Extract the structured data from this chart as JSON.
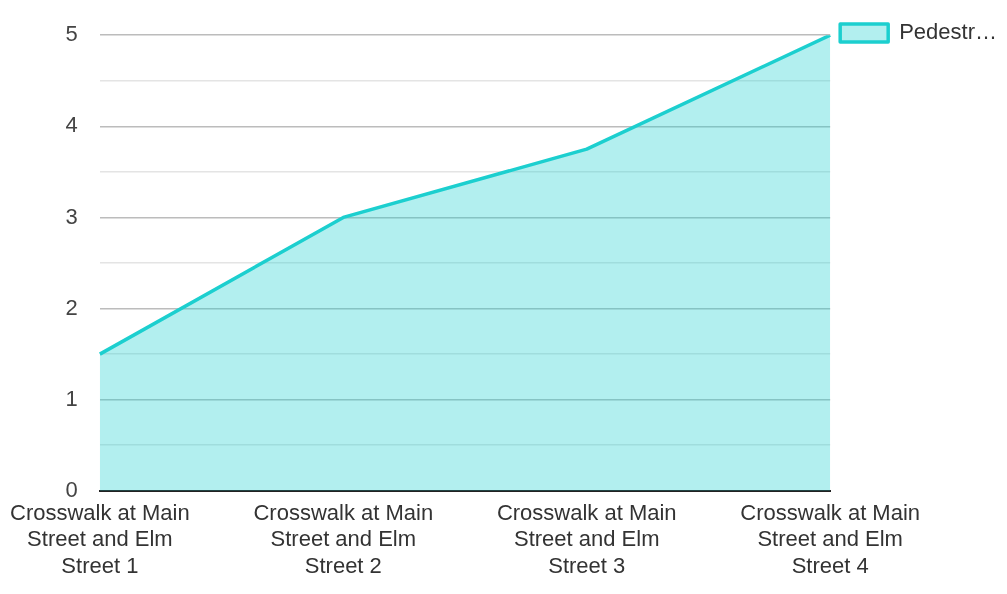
{
  "chart_data": {
    "type": "area",
    "categories": [
      "Crosswalk at Main Street and Elm Street 1",
      "Crosswalk at Main Street and Elm Street 2",
      "Crosswalk at Main Street and Elm Street 3",
      "Crosswalk at Main Street and Elm Street 4"
    ],
    "series": [
      {
        "name": "Pedestr…",
        "color": "#1ccfcf",
        "values": [
          1.5,
          3,
          3.75,
          5
        ]
      }
    ],
    "ylim": [
      0,
      5
    ],
    "yticks": [
      0,
      {
        "value": 0.5,
        "label": null
      },
      1,
      {
        "value": 1.5,
        "label": null
      },
      2,
      {
        "value": 2.5,
        "label": null
      },
      3,
      {
        "value": 3.5,
        "label": null
      },
      4,
      {
        "value": 4.5,
        "label": null
      },
      5
    ],
    "grid": "y",
    "legend": "top right",
    "marker": "none",
    "line_style": "solid"
  }
}
